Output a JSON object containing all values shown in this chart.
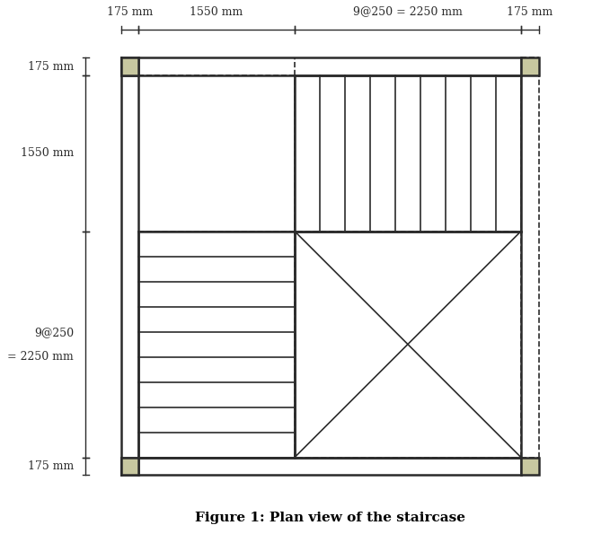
{
  "title": "Figure 1: Plan view of the staircase",
  "title_fontsize": 11,
  "background_color": "#ffffff",
  "fig_width": 6.79,
  "fig_height": 5.95,
  "dpi": 100,
  "dim_2250": "9@250 = 2250 mm",
  "dim_1550_label": "1550 mm",
  "dim_175_label": "175 mm",
  "dim_left_v1": "9@250",
  "dim_left_v2": "= 2250 mm",
  "column_color": "#c8c8a0",
  "line_color": "#2b2b2b",
  "lw": 1.2,
  "lw_thick": 1.8,
  "n_treads": 9,
  "n_vert": 9
}
